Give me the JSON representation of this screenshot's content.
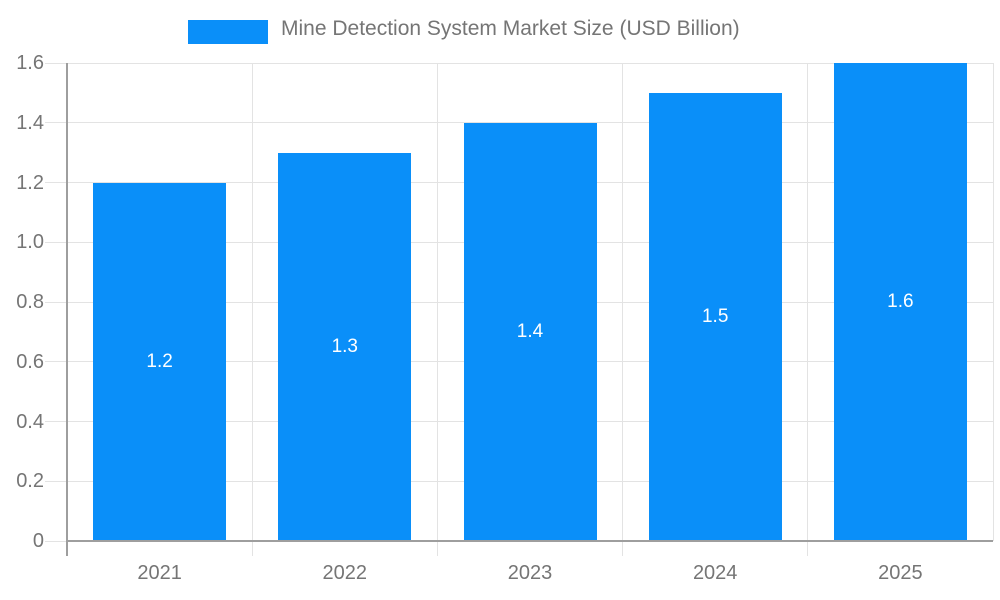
{
  "chart_data": {
    "type": "bar",
    "title": "Mine Detection System Market Size (USD Billion)",
    "categories": [
      "2021",
      "2022",
      "2023",
      "2024",
      "2025"
    ],
    "values": [
      1.2,
      1.3,
      1.4,
      1.5,
      1.6
    ],
    "bar_labels": [
      "1.2",
      "1.3",
      "1.4",
      "1.5",
      "1.6"
    ],
    "xlabel": "",
    "ylabel": "",
    "ylim": [
      0,
      1.6
    ],
    "ytick_step": 0.2,
    "ytick_labels": [
      "0",
      "0.2",
      "0.4",
      "0.6",
      "0.8",
      "1.0",
      "1.2",
      "1.4",
      "1.6"
    ],
    "legend_position": "top-center",
    "grid": true,
    "colors": {
      "bar": "#0a8ff9",
      "axis_line": "#9e9e9e",
      "grid_line": "#e3e3e3",
      "tick_text": "#757575",
      "legend_text": "#757575",
      "bar_label_text": "#ffffff",
      "background": "#ffffff"
    }
  }
}
